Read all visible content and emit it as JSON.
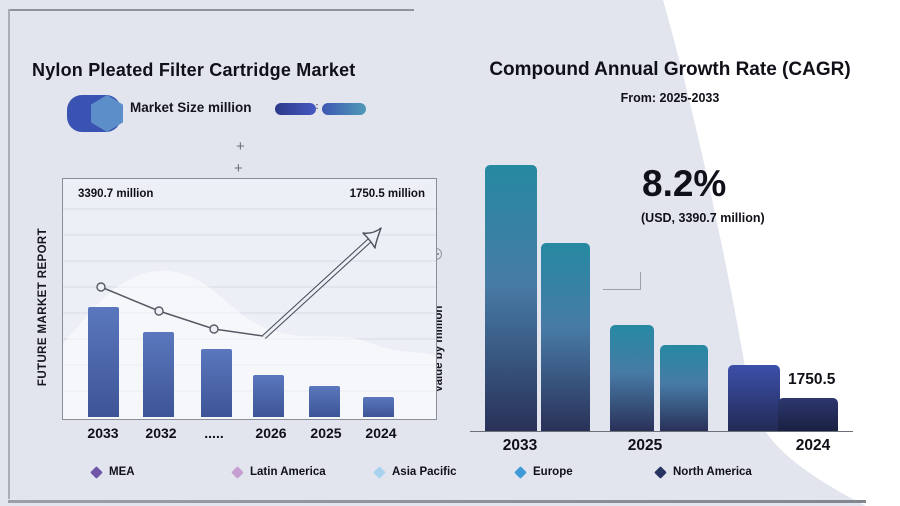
{
  "left_section": {
    "title": "Nylon Pleated Filter Cartridge Market",
    "legend_label": "Market Size million",
    "legend_separator": ":",
    "plus_marks": [
      "+",
      "+"
    ],
    "watermark_vertical": "FUTURE MARKET REPORT",
    "value_axis_label": "Value by million",
    "chart": {
      "start_value_label": "3390.7 million",
      "end_value_label": "1750.5 million"
    }
  },
  "right_section": {
    "title": "Compound Annual Growth Rate (CAGR)",
    "subtitle": "From: 2025-2033",
    "cagr_value": "8.2%",
    "cagr_detail": "(USD, 3390.7 million)",
    "value_callout": "1750.5"
  },
  "bottom_legend": {
    "items": [
      {
        "label": "MEA",
        "color": "#6f55a8"
      },
      {
        "label": "Latin America",
        "color": "#c79ed0"
      },
      {
        "label": "Asia Pacific",
        "color": "#a9d2ee"
      },
      {
        "label": "Europe",
        "color": "#3f9bd8"
      },
      {
        "label": "North America",
        "color": "#273361"
      }
    ]
  },
  "palette": {
    "background": "#e2e5ee",
    "panel_background": "#edeff6",
    "left_bar_gradient": [
      "#5b77bd",
      "#3d5596"
    ],
    "teal_bar_gradient": [
      "#2689a2",
      "#477ba6",
      "#2a3158"
    ],
    "indigo_bar_gradient": [
      "#3d50aa",
      "#232a55"
    ],
    "navy_bar_gradient": [
      "#2d376e",
      "#1a2142"
    ]
  },
  "chart_data": [
    {
      "type": "bar",
      "title": "Nylon Pleated Filter Cartridge Market",
      "legend": "Market Size million",
      "ylabel": "Value by million",
      "categories": [
        "2033",
        "2032",
        ".....",
        "2026",
        "2025",
        "2024"
      ],
      "series": [
        {
          "name": "Market Size million",
          "type": "bar",
          "relative_heights": [
            1.0,
            0.77,
            0.62,
            0.38,
            0.28,
            0.18
          ]
        },
        {
          "name": "trend-line",
          "type": "line",
          "marker": "circle",
          "note": "declines over first four categories then arrow rises to top right"
        }
      ],
      "known_values": {
        "2033": 3390.7,
        "2024": 1750.5
      },
      "annotations": [
        "3390.7 million",
        "1750.5 million"
      ],
      "grid": true,
      "legend_position": "none"
    },
    {
      "type": "bar",
      "title": "Compound Annual Growth Rate (CAGR)",
      "subtitle": "From: 2025-2033",
      "cagr_percent": 8.2,
      "cagr_basis": "(USD, 3390.7 million)",
      "categories": [
        "2033",
        "2025",
        "2024"
      ],
      "series": [
        {
          "name": "bar-left",
          "relative_heights": [
            1.0,
            0.398,
            0.248
          ]
        },
        {
          "name": "bar-right",
          "relative_heights": [
            0.707,
            0.323,
            0.124
          ]
        }
      ],
      "known_values": {
        "2024": 1750.5
      },
      "grid": false,
      "legend_position": "bottom"
    }
  ]
}
